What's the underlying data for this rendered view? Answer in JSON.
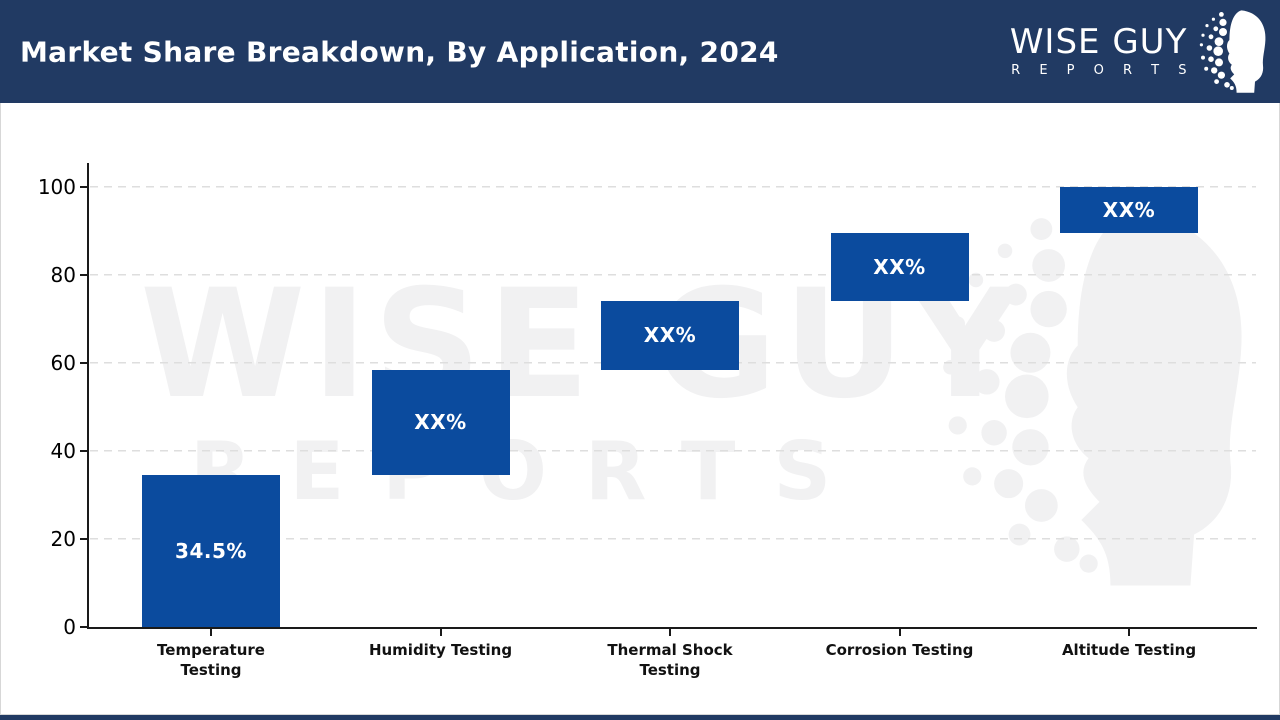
{
  "header": {
    "title": "Market Share Breakdown, By Application, 2024",
    "logo": {
      "name": "WISE GUY",
      "sub": "R E P O R T S"
    }
  },
  "watermark": {
    "line1": "WISE GUY",
    "line2": "REPORTS"
  },
  "chart_data": {
    "type": "bar",
    "variant": "waterfall",
    "title": "Market Share Breakdown, By Application, 2024",
    "categories": [
      "Temperature Testing",
      "Humidity Testing",
      "Thermal Shock Testing",
      "Corrosion Testing",
      "Altitude Testing"
    ],
    "bars": [
      {
        "category": "Temperature Testing",
        "lines": [
          "Temperature",
          "Testing"
        ],
        "start": 0,
        "end": 34.5,
        "label": "34.5%"
      },
      {
        "category": "Humidity Testing",
        "lines": [
          "Humidity Testing"
        ],
        "start": 34.5,
        "end": 58.5,
        "label": "XX%"
      },
      {
        "category": "Thermal Shock Testing",
        "lines": [
          "Thermal Shock",
          "Testing"
        ],
        "start": 58.5,
        "end": 74.2,
        "label": "XX%"
      },
      {
        "category": "Corrosion Testing",
        "lines": [
          "Corrosion Testing"
        ],
        "start": 74.2,
        "end": 89.5,
        "label": "XX%"
      },
      {
        "category": "Altitude Testing",
        "lines": [
          "Altitude Testing"
        ],
        "start": 89.5,
        "end": 100,
        "label": "XX%"
      }
    ],
    "y_ticks": [
      0,
      20,
      40,
      60,
      80,
      100
    ],
    "ylim": [
      0,
      105
    ],
    "xlabel": "",
    "ylabel": "",
    "grid": "horizontal-dashed",
    "legend": "none",
    "bar_color": "#0b4b9e",
    "bar_label_color": "#ffffff"
  },
  "colors": {
    "header_bg": "#213a63",
    "footer_bg": "#213a63",
    "bar": "#0b4b9e",
    "axis": "#1a1a1a",
    "grid": "#dedede",
    "watermark": "#f1f1f2",
    "background": "#ffffff"
  }
}
